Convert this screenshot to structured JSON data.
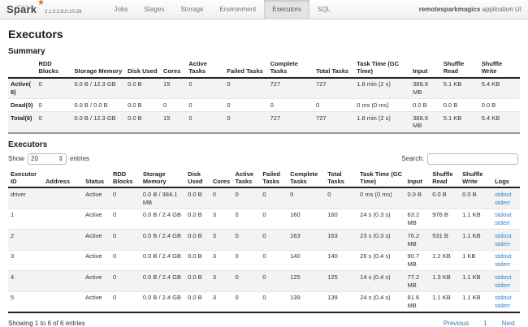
{
  "navbar": {
    "apache": "APACHE",
    "brand": "Spark",
    "star": "★",
    "version": "2.1.0.2.6.0.10-29",
    "tabs": [
      {
        "label": "Jobs",
        "active": false
      },
      {
        "label": "Stages",
        "active": false
      },
      {
        "label": "Storage",
        "active": false
      },
      {
        "label": "Environment",
        "active": false
      },
      {
        "label": "Executors",
        "active": true
      },
      {
        "label": "SQL",
        "active": false
      }
    ],
    "app_name": "remotesparkmagics",
    "app_suffix": " application UI"
  },
  "page": {
    "title": "Executors"
  },
  "summary": {
    "heading": "Summary",
    "columns": [
      "",
      "RDD Blocks",
      "Storage Memory",
      "Disk Used",
      "Cores",
      "Active Tasks",
      "Failed Tasks",
      "Complete Tasks",
      "Total Tasks",
      "Task Time (GC Time)",
      "Input",
      "Shuffle Read",
      "Shuffle Write"
    ],
    "rows": [
      {
        "label": "Active(6)",
        "cells": [
          "0",
          "0.0 B / 12.3 GB",
          "0.0 B",
          "15",
          "0",
          "0",
          "727",
          "727",
          "1.8 min (2 s)",
          "388.9 MB",
          "5.1 KB",
          "5.4 KB"
        ]
      },
      {
        "label": "Dead(0)",
        "cells": [
          "0",
          "0.0 B / 0.0 B",
          "0.0 B",
          "0",
          "0",
          "0",
          "0",
          "0",
          "0 ms (0 ms)",
          "0.0 B",
          "0.0 B",
          "0.0 B"
        ]
      },
      {
        "label": "Total(6)",
        "cells": [
          "0",
          "0.0 B / 12.3 GB",
          "0.0 B",
          "15",
          "0",
          "0",
          "727",
          "727",
          "1.8 min (2 s)",
          "388.9 MB",
          "5.1 KB",
          "5.4 KB"
        ]
      }
    ]
  },
  "executors": {
    "heading": "Executors",
    "show_label": "Show",
    "entries_value": "20",
    "entries_arrows": "⇕",
    "entries_label": "entries",
    "search_label": "Search:",
    "search_value": "",
    "columns": [
      "Executor ID",
      "Address",
      "Status",
      "RDD Blocks",
      "Storage Memory",
      "Disk Used",
      "Cores",
      "Active Tasks",
      "Failed Tasks",
      "Complete Tasks",
      "Total Tasks",
      "Task Time (GC Time)",
      "Input",
      "Shuffle Read",
      "Shuffle Write",
      "Logs"
    ],
    "rows": [
      {
        "id": "driver",
        "cells": [
          "",
          "Active",
          "0",
          "0.0 B / 384.1 MB",
          "0.0 B",
          "0",
          "0",
          "0",
          "0",
          "0",
          "0 ms (0 ms)",
          "0.0 B",
          "0.0 B",
          "0.0 B"
        ],
        "logs": [
          "stdout",
          "stderr"
        ]
      },
      {
        "id": "1",
        "cells": [
          "",
          "Active",
          "0",
          "0.0 B / 2.4 GB",
          "0.0 B",
          "3",
          "0",
          "0",
          "160",
          "160",
          "24 s (0.3 s)",
          "63.2 MB",
          "976 B",
          "1.1 KB"
        ],
        "logs": [
          "stdout",
          "stderr"
        ]
      },
      {
        "id": "2",
        "cells": [
          "",
          "Active",
          "0",
          "0.0 B / 2.4 GB",
          "0.0 B",
          "3",
          "0",
          "0",
          "163",
          "163",
          "23 s (0.3 s)",
          "76.2 MB",
          "531 B",
          "1.1 KB"
        ],
        "logs": [
          "stdout",
          "stderr"
        ]
      },
      {
        "id": "3",
        "cells": [
          "",
          "Active",
          "0",
          "0.0 B / 2.4 GB",
          "0.0 B",
          "3",
          "0",
          "0",
          "140",
          "140",
          "26 s (0.4 s)",
          "90.7 MB",
          "1.2 KB",
          "1 KB"
        ],
        "logs": [
          "stdout",
          "stderr"
        ]
      },
      {
        "id": "4",
        "cells": [
          "",
          "Active",
          "0",
          "0.0 B / 2.4 GB",
          "0.0 B",
          "3",
          "0",
          "0",
          "125",
          "125",
          "14 s (0.4 s)",
          "77.2 MB",
          "1.3 KB",
          "1.1 KB"
        ],
        "logs": [
          "stdout",
          "stderr"
        ]
      },
      {
        "id": "5",
        "cells": [
          "",
          "Active",
          "0",
          "0.0 B / 2.4 GB",
          "0.0 B",
          "3",
          "0",
          "0",
          "139",
          "139",
          "24 s (0.4 s)",
          "81.6 MB",
          "1.1 KB",
          "1.1 KB"
        ],
        "logs": [
          "stdout",
          "stderr"
        ]
      }
    ],
    "footer": {
      "info": "Showing 1 to 6 of 6 entries",
      "previous": "Previous",
      "page": "1",
      "next": "Next"
    }
  },
  "colors": {
    "link_blue": "#337ab7",
    "log_link_blue": "#2f7fd1",
    "spark_orange": "#e8701a",
    "stripe_gray": "#f3f3f3",
    "navbar_active": "#e4e4e4"
  }
}
